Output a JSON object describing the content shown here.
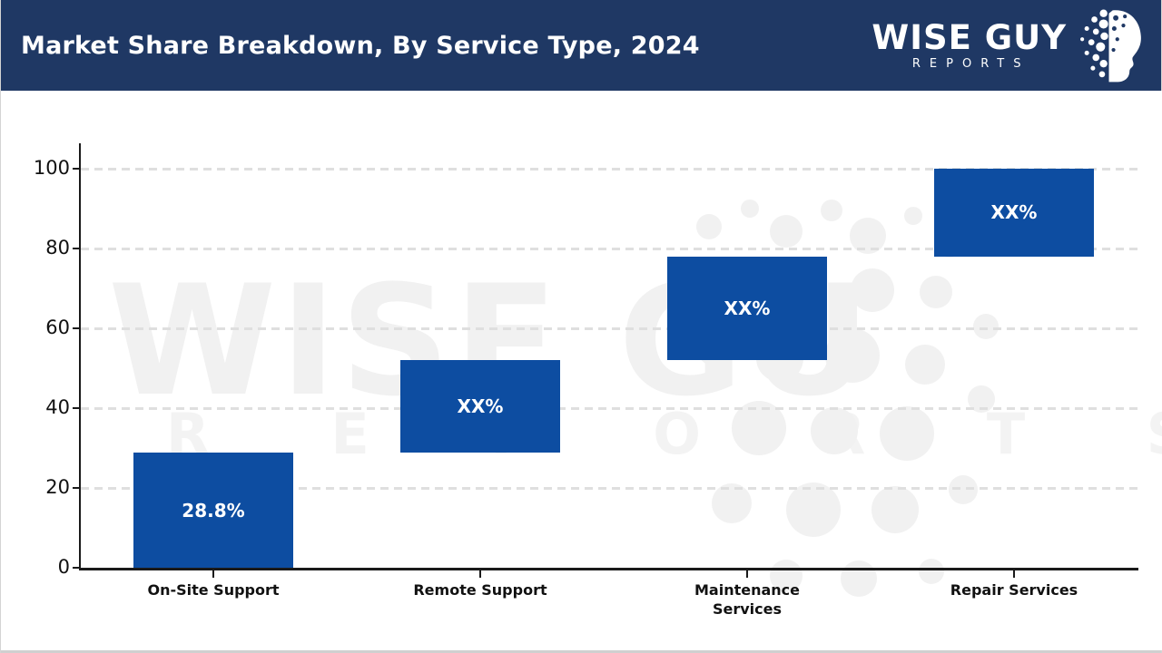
{
  "page": {
    "background": "#ffffff",
    "edge_border_color": "#d0d0d0"
  },
  "header": {
    "background": "#1f3864",
    "title": "Market Share Breakdown, By Service Type, 2024",
    "title_color": "#ffffff",
    "logo": {
      "line1": "WISE GUY",
      "line2": "REPORTS"
    }
  },
  "watermark": {
    "line1": "WISE GU",
    "line2": "R E P O R T S"
  },
  "chart_data": {
    "type": "bar",
    "subtype": "floating-waterfall",
    "title": "Market Share Breakdown, By Service Type, 2024",
    "categories": [
      "On-Site Support",
      "Remote Support",
      "Maintenance Services",
      "Repair Services"
    ],
    "bars": [
      {
        "category": "On-Site Support",
        "start": 0,
        "end": 28.8,
        "label": "28.8%"
      },
      {
        "category": "Remote Support",
        "start": 28.8,
        "end": 52,
        "label": "XX%"
      },
      {
        "category": "Maintenance Services",
        "start": 52,
        "end": 78,
        "label": "XX%"
      },
      {
        "category": "Repair Services",
        "start": 78,
        "end": 100,
        "label": "XX%"
      }
    ],
    "values_delta": [
      28.8,
      23.2,
      26,
      22
    ],
    "xlabel": "",
    "ylabel": "",
    "ylim": [
      0,
      100
    ],
    "yticks": [
      0,
      20,
      40,
      60,
      80,
      100
    ],
    "grid": "horizontal-dashed",
    "legend": "none",
    "bar_color": "#0d4da1",
    "bar_label_color": "#ffffff",
    "axis_color": "#1a1a1a",
    "gridline_color": "#dfdfdf"
  }
}
